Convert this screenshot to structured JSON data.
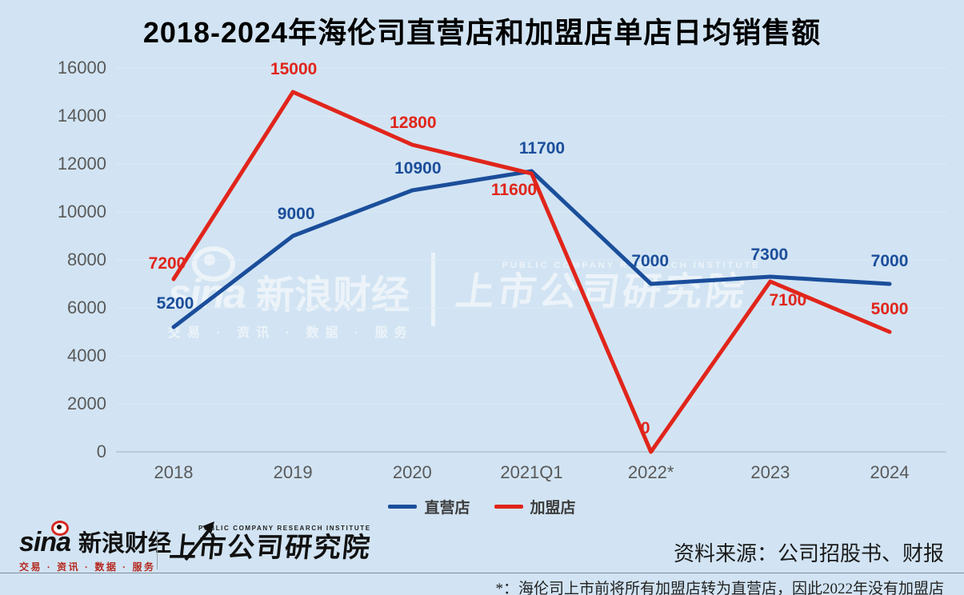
{
  "title": "2018-2024年海伦司直营店和加盟店单店日均销售额",
  "chart_data": {
    "type": "line",
    "title": "2018-2024年海伦司直营店和加盟店单店日均销售额",
    "categories": [
      "2018",
      "2019",
      "2020",
      "2021Q1",
      "2022*",
      "2023",
      "2024"
    ],
    "series": [
      {
        "name": "直营店",
        "color": "#1b4e9b",
        "values": [
          5200,
          9000,
          10900,
          11700,
          7000,
          7300,
          7000
        ]
      },
      {
        "name": "加盟店",
        "color": "#e1251b",
        "values": [
          7200,
          15000,
          12800,
          11600,
          0,
          7100,
          5000
        ]
      }
    ],
    "ylim": [
      0,
      16000
    ],
    "ytick_step": 2000,
    "grid": "horizontal-only",
    "legend_position": "bottom"
  },
  "watermark": {
    "sina": "sina",
    "brand": "新浪财经",
    "tagline": "交易 · 资讯 · 数据 · 服务",
    "institute_en": "PUBLIC COMPANY RESEARCH INSTITUTE",
    "institute": "上市公司研究院"
  },
  "footer": {
    "sina_word": "sina",
    "sina_brand": "新浪财经",
    "sina_tagline": "交易 · 资讯 · 数据 · 服务",
    "institute_en": "PUBLIC COMPANY RESEARCH INSTITUTE",
    "institute": "上市公司研究院",
    "source": "资料来源：公司招股书、财报",
    "footnote": "*：海伦司上市前将所有加盟店转为直营店，因此2022年没有加盟店"
  },
  "colors": {
    "background": "#d2e4f3",
    "direct_store": "#1b4e9b",
    "franchise_store": "#e1251b",
    "sina_red": "#d6281e",
    "gridline": "#dde9f3",
    "axis_line": "#b3c2cf",
    "tick_text": "#595959"
  }
}
